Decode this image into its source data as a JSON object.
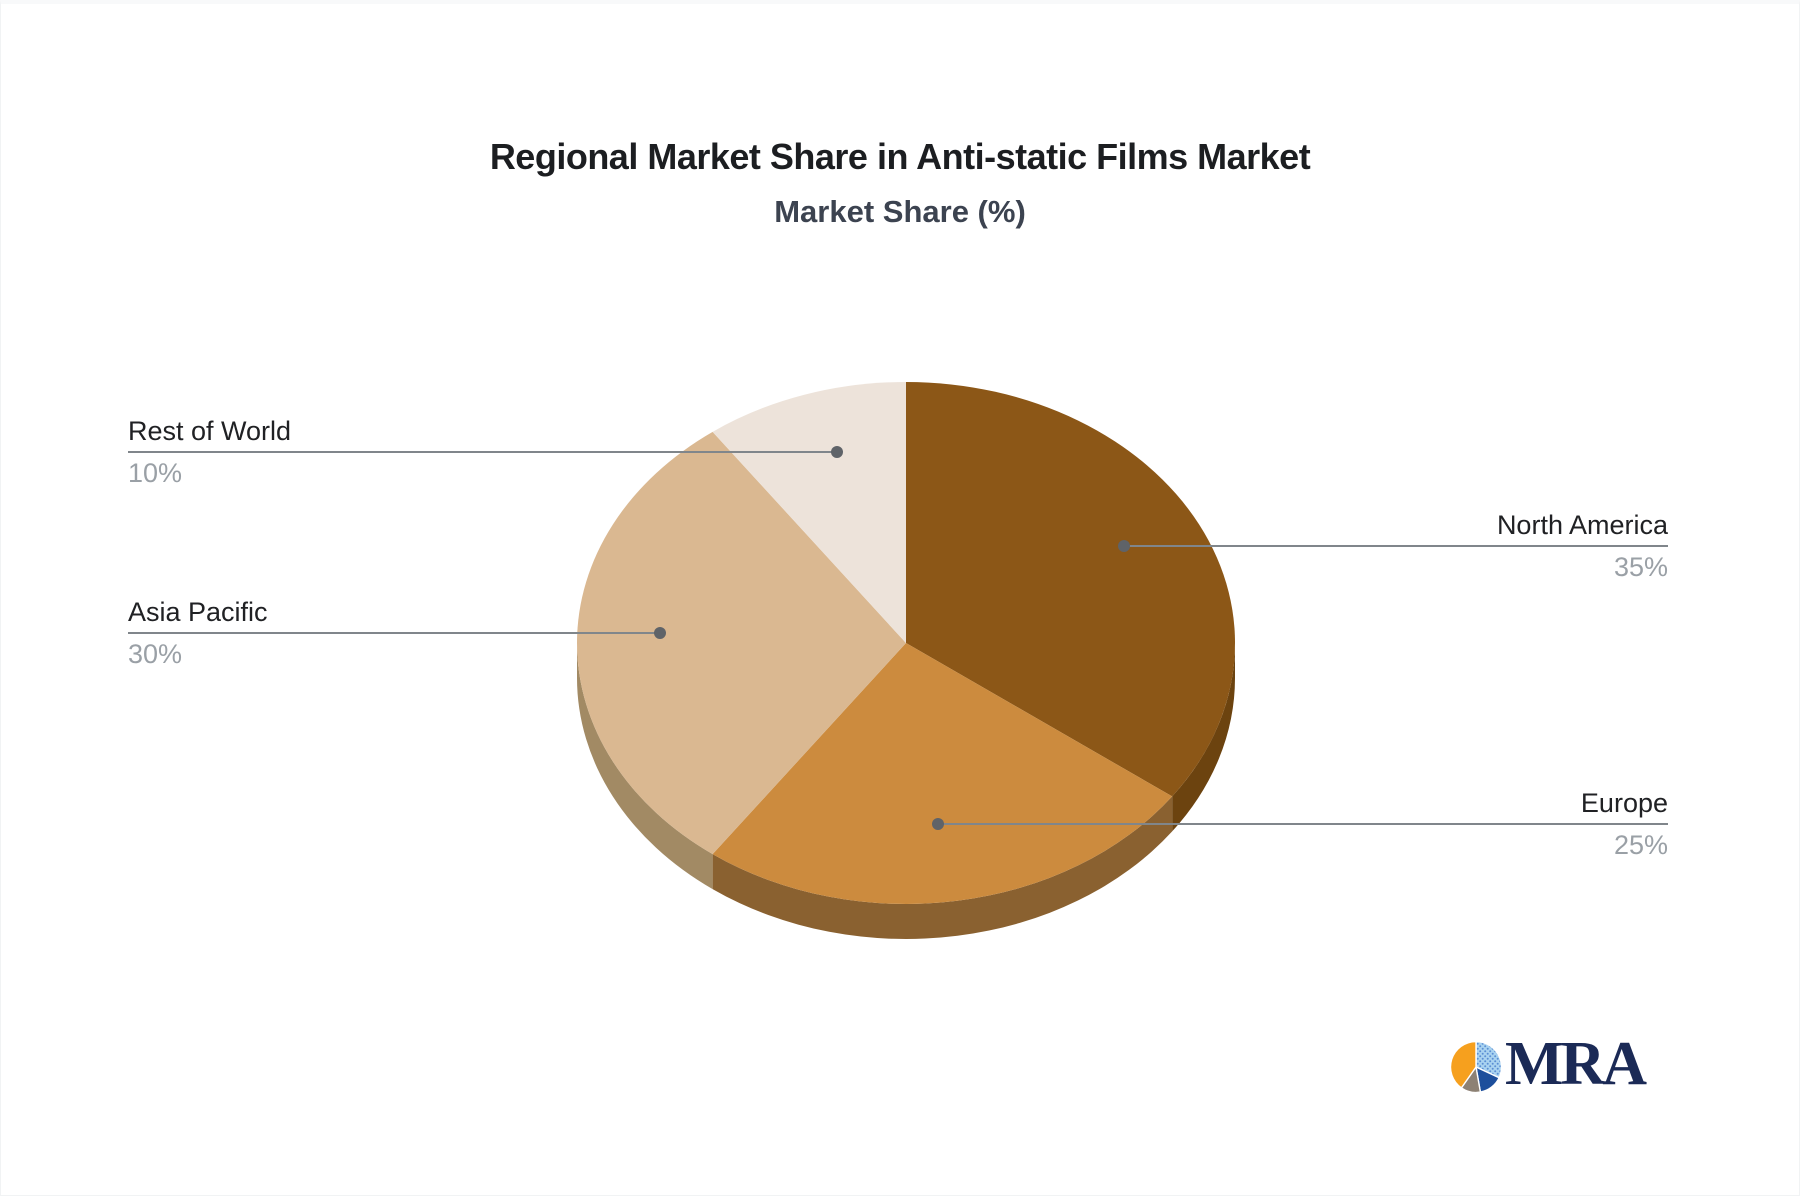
{
  "chart_data": {
    "type": "pie",
    "style": "3d",
    "title": "Regional Market Share in Anti-static Films Market",
    "subtitle": "Market Share (%)",
    "unit": "%",
    "start_angle_deg": 0,
    "direction": "clockwise",
    "labels": [
      "North America",
      "Europe",
      "Asia Pacific",
      "Rest of World"
    ],
    "values": [
      35,
      25,
      30,
      10
    ],
    "value_labels": [
      "35%",
      "25%",
      "30%",
      "10%"
    ],
    "slice_colors": [
      "#8C5717",
      "#CC8B3E",
      "#DAB891",
      "#EDE3DA"
    ],
    "slice_side_colors": [
      "#6C430F",
      "#8A6130",
      "#A28A64",
      "#D2C8BE"
    ],
    "label_color": "#202124",
    "value_color": "#9aa0a6",
    "leader_line_color": "#80868b",
    "leader_dot_color": "#5f6368",
    "background": "#ffffff",
    "legend": "none"
  },
  "logo": {
    "text": "MRA",
    "text_color": "#1b2a56",
    "icon_colors": {
      "orange": "#F6A01E",
      "light_blue": "#A9D3F0",
      "dot_blue": "#5B8FD4",
      "dark_blue": "#1D4F9C",
      "gray": "#8D8174"
    }
  }
}
